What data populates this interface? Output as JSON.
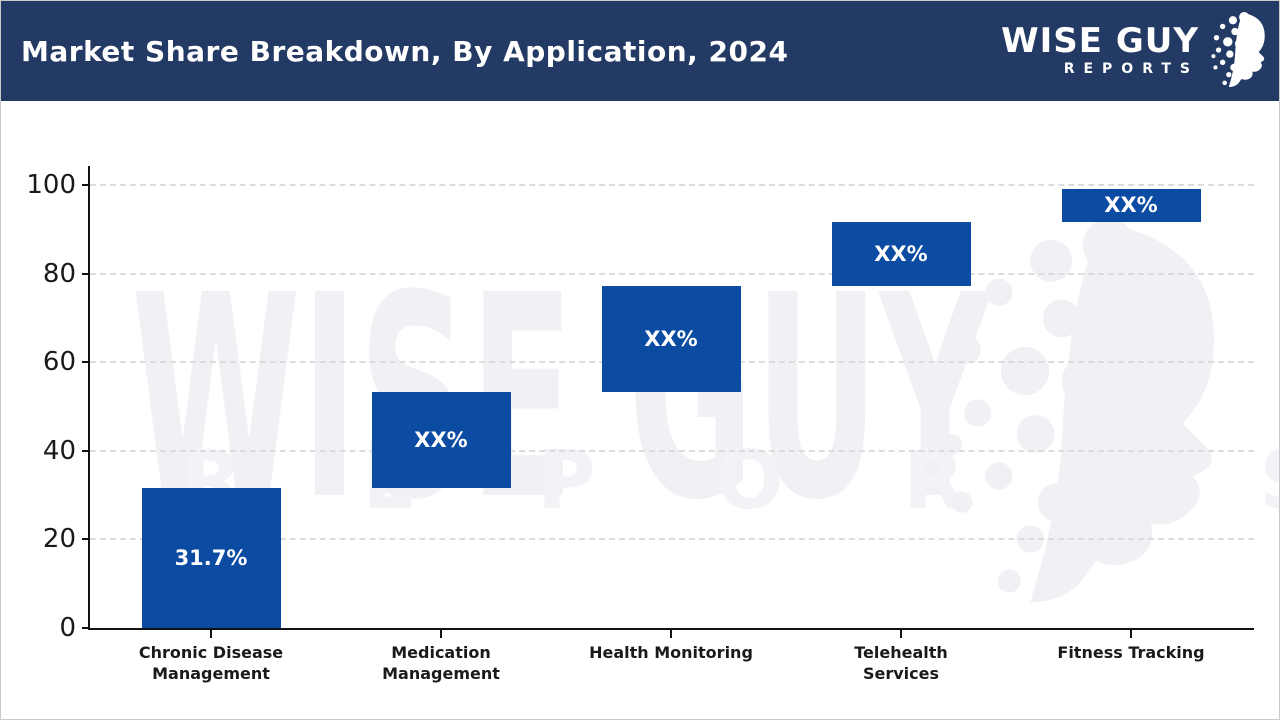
{
  "header": {
    "title": "Market Share Breakdown, By Application, 2024",
    "bg_color": "#233A64",
    "logo": {
      "line1": "WISE GUY",
      "line2": "REPORTS"
    }
  },
  "watermark": {
    "line1": "WISE GUY",
    "line2": "R E P O R T S"
  },
  "chart_data": {
    "type": "bar",
    "variant": "waterfall",
    "title": "Market Share Breakdown, By Application, 2024",
    "categories": [
      "Chronic Disease Management",
      "Medication Management",
      "Health Monitoring",
      "Telehealth Services",
      "Fitness Tracking"
    ],
    "axis_labels": [
      "Chronic Disease\nManagement",
      "Medication\nManagement",
      "Health Monitoring",
      "Telehealth\nServices",
      "Fitness Tracking"
    ],
    "segments": [
      {
        "category": "Chronic Disease Management",
        "start": 0,
        "end": 31.7,
        "label": "31.7%"
      },
      {
        "category": "Medication Management",
        "start": 31.7,
        "end": 53.2,
        "label": "XX%"
      },
      {
        "category": "Health Monitoring",
        "start": 53.2,
        "end": 77.2,
        "label": "XX%"
      },
      {
        "category": "Telehealth Services",
        "start": 77.2,
        "end": 91.6,
        "label": "XX%"
      },
      {
        "category": "Fitness Tracking",
        "start": 91.6,
        "end": 99.2,
        "label": "XX%"
      }
    ],
    "y_ticks": [
      0,
      20,
      40,
      60,
      80,
      100
    ],
    "ylim": [
      0,
      104
    ],
    "xlabel": "",
    "ylabel": "",
    "grid": "horizontal-dashed",
    "legend": "none",
    "bar_color": "#0B4CA2",
    "value_label_color": "#FFFFFF",
    "axis_color": "#111111",
    "gridline_color": "#DCDCDC"
  }
}
